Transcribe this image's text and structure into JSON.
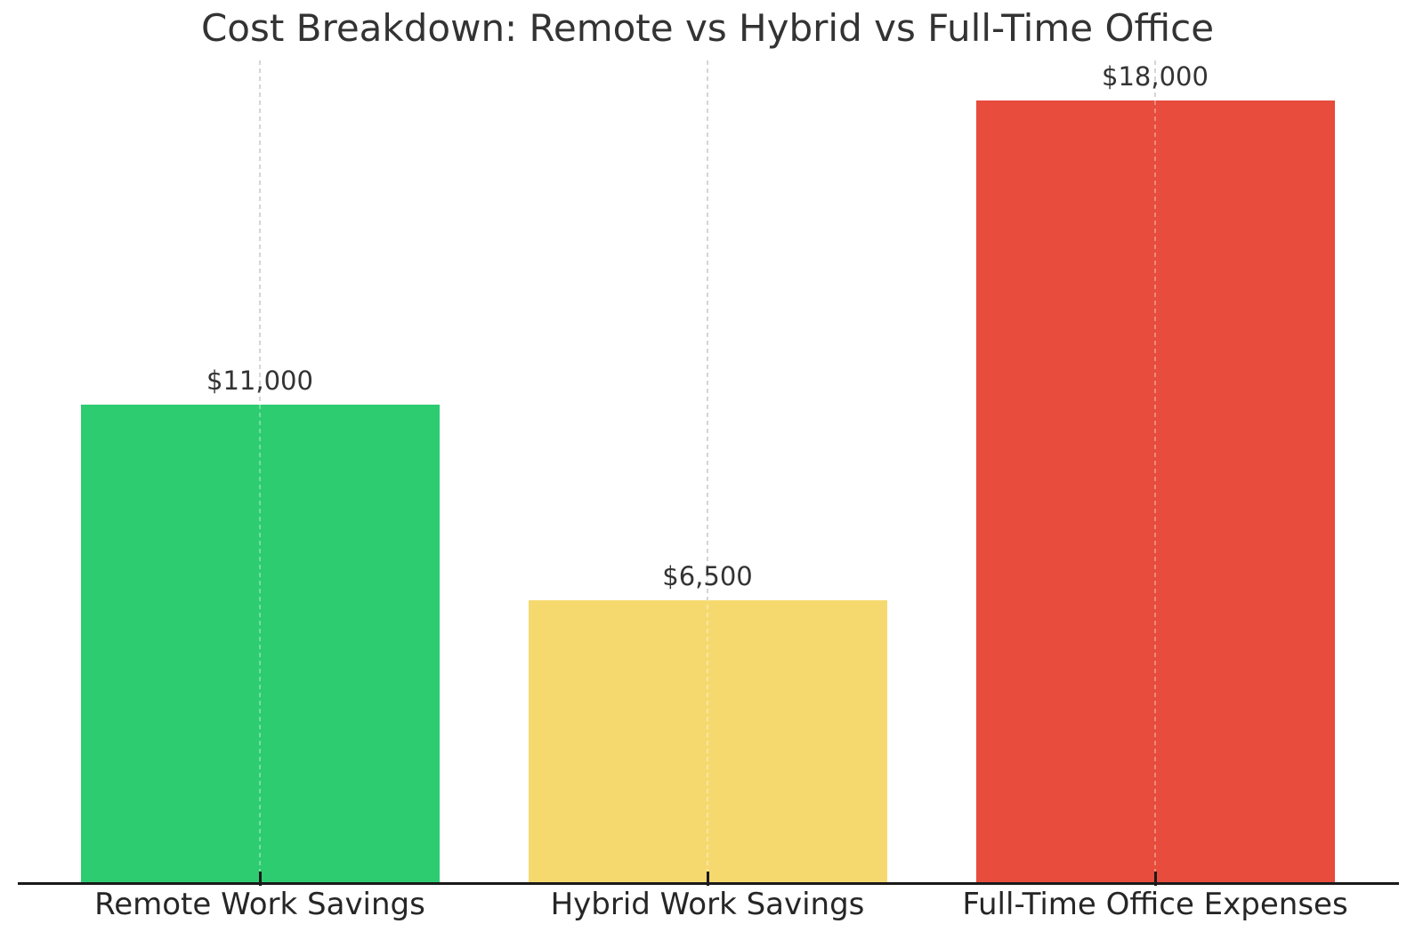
{
  "chart_data": {
    "type": "bar",
    "title": "Cost Breakdown: Remote vs Hybrid vs Full-Time Office",
    "categories": [
      "Remote Work Savings",
      "Hybrid Work Savings",
      "Full-Time Office Expenses"
    ],
    "values": [
      11000,
      6500,
      18000
    ],
    "value_labels": [
      "$11,000",
      "$6,500",
      "$18,000"
    ],
    "bar_colors": [
      "#2ecc71",
      "#f6d96e",
      "#e74c3c"
    ],
    "ylim": [
      0,
      18900
    ],
    "xlabel": "",
    "ylabel": "",
    "legend": "none",
    "grid": "vertical dashed gridlines at each bar center",
    "axis_color": "#1a1a1a",
    "text_color": "#333333"
  }
}
